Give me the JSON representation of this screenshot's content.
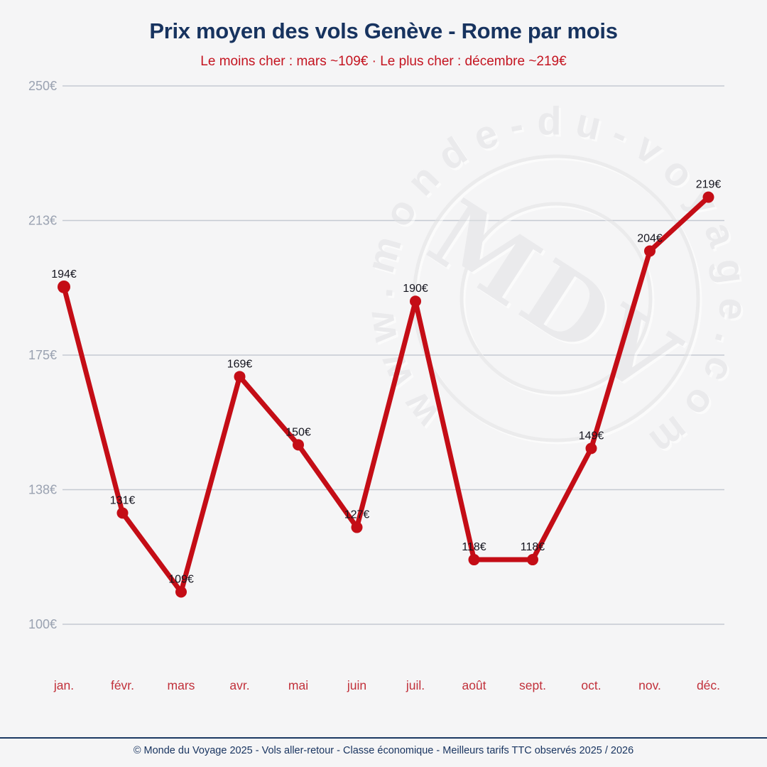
{
  "header": {
    "title": "Prix moyen des vols Genève - Rome par mois",
    "subtitle": "Le moins cher : mars ~109€ · Le plus cher : décembre ~219€"
  },
  "chart_data": {
    "type": "line",
    "title": "Prix moyen des vols Genève - Rome par mois",
    "categories": [
      "jan.",
      "févr.",
      "mars",
      "avr.",
      "mai",
      "juin",
      "juil.",
      "août",
      "sept.",
      "oct.",
      "nov.",
      "déc."
    ],
    "values": [
      194,
      131,
      109,
      169,
      150,
      127,
      190,
      118,
      118,
      149,
      204,
      219
    ],
    "unit": "€",
    "y_ticks": [
      250,
      213,
      175,
      138,
      100
    ],
    "ylim": [
      100,
      250
    ],
    "grid": true,
    "legend": "none",
    "colors": {
      "line": "#c40d16",
      "point": "#c40d16",
      "value_label": "#15151f",
      "y_tick_label": "#9aa2b1",
      "gridline": "#c5cad2",
      "month_label": "#c1303a",
      "background": "#f5f5f6"
    }
  },
  "watermark": {
    "ring_text": "www.monde-du-voyage.com",
    "center_text": "MDV"
  },
  "footer": {
    "text": "© Monde du Voyage 2025 - Vols aller-retour - Classe économique - Meilleurs tarifs TTC observés 2025 / 2026"
  }
}
